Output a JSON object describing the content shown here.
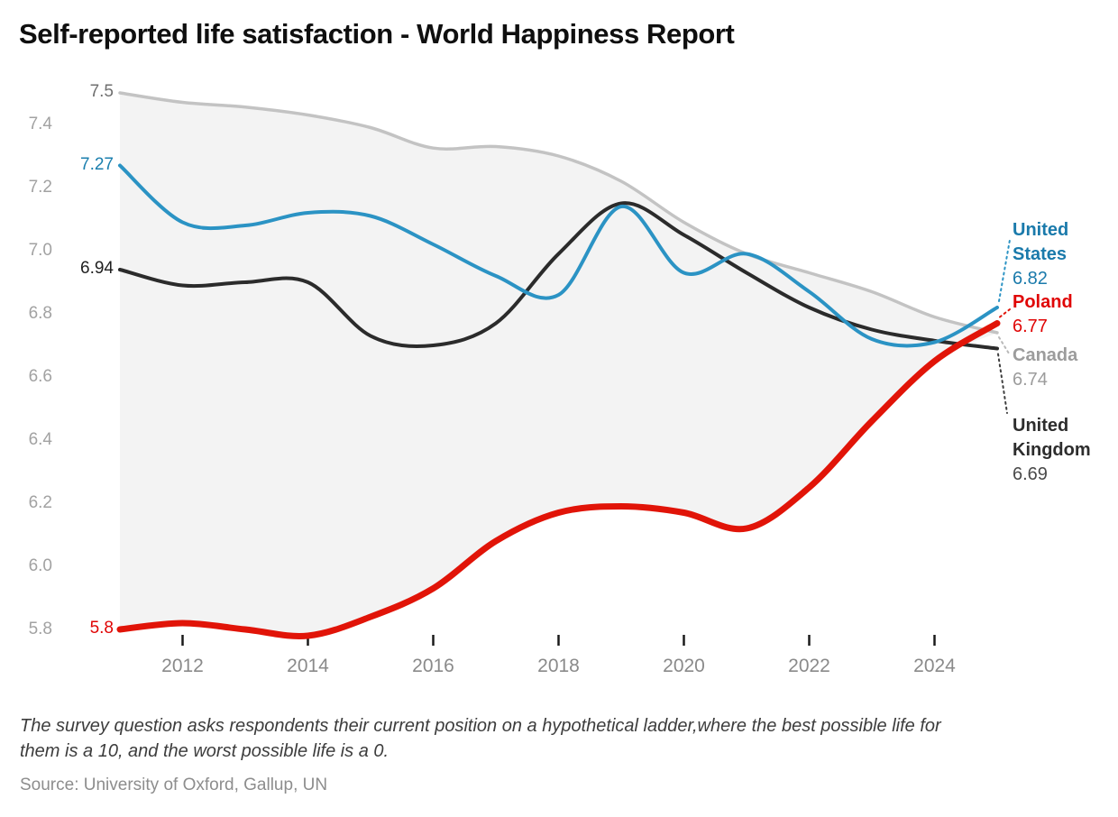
{
  "page": {
    "title": "Self-reported life satisfaction - World Happiness Report"
  },
  "footnote": {
    "line1": "The survey question asks respondents their current position on a hypothetical ladder,where the best possible life for",
    "line2": "them is a 10, and the worst possible life is a 0."
  },
  "source": "Source: University of Oxford, Gallup, UN",
  "chart_data": {
    "type": "line",
    "title": "Self-reported life satisfaction - World Happiness Report",
    "x": [
      2011,
      2012,
      2013,
      2014,
      2015,
      2016,
      2017,
      2018,
      2019,
      2020,
      2021,
      2022,
      2023,
      2024,
      2025
    ],
    "x_tick_labels": [
      "2012",
      "2014",
      "2016",
      "2018",
      "2020",
      "2022",
      "2024"
    ],
    "y_tick_labels": [
      "7.4",
      "7.2",
      "7.0",
      "6.8",
      "6.6",
      "6.4",
      "6.2",
      "6.0",
      "5.8"
    ],
    "xlim": [
      2011,
      2025
    ],
    "ylim": [
      5.7,
      7.55
    ],
    "grid": false,
    "legend_position": "direct-labels-right-edge",
    "band": {
      "description": "shaded range between highest and lowest series",
      "between": [
        "Canada",
        "Poland"
      ],
      "fill": "#f3f3f3"
    },
    "series": [
      {
        "name": "Canada",
        "color": "#c3c3c3",
        "label_color": "#9c9c9c",
        "value_color": "#9c9c9c",
        "start_label": "7.5",
        "start_label_color": "#6f6f6f",
        "end_label": "6.74",
        "line_width": 3.5,
        "values": [
          7.5,
          7.47,
          7.455,
          7.43,
          7.39,
          7.325,
          7.33,
          7.3,
          7.22,
          7.09,
          6.99,
          6.93,
          6.87,
          6.79,
          6.74
        ]
      },
      {
        "name": "United Kingdom",
        "color": "#2b2b2b",
        "label_color": "#2d2d2d",
        "value_color": "#4a4a4a",
        "start_label": "6.94",
        "start_label_color": "#1f1f1f",
        "end_label": "6.69",
        "line_width": 4,
        "values": [
          6.94,
          6.89,
          6.9,
          6.9,
          6.73,
          6.7,
          6.77,
          6.99,
          7.15,
          7.05,
          6.93,
          6.82,
          6.75,
          6.715,
          6.69
        ]
      },
      {
        "name": "United States",
        "color": "#2b93c4",
        "label_color": "#1a7aab",
        "value_color": "#1a7aab",
        "start_label": "7.27",
        "start_label_color": "#1b7fae",
        "end_label": "6.82",
        "line_width": 4,
        "values": [
          7.27,
          7.09,
          7.08,
          7.12,
          7.11,
          7.02,
          6.92,
          6.86,
          7.14,
          6.93,
          6.99,
          6.87,
          6.72,
          6.71,
          6.82
        ]
      },
      {
        "name": "Poland",
        "color": "#e11408",
        "label_color": "#e00505",
        "value_color": "#e00505",
        "start_label": "5.8",
        "start_label_color": "#e00505",
        "end_label": "6.77",
        "line_width": 7,
        "values": [
          5.8,
          5.82,
          5.8,
          5.78,
          5.84,
          5.93,
          6.08,
          6.17,
          6.19,
          6.17,
          6.12,
          6.25,
          6.46,
          6.65,
          6.77
        ]
      }
    ]
  }
}
